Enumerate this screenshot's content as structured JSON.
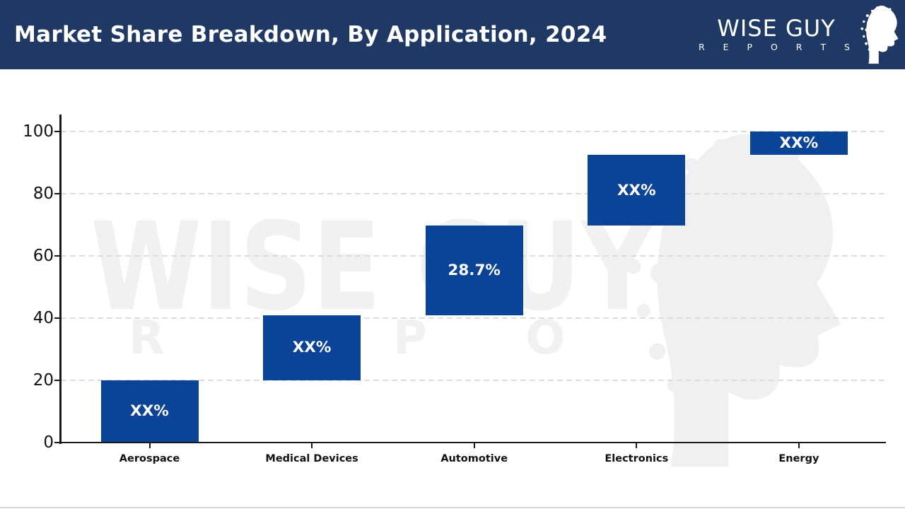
{
  "header": {
    "title": "Market Share Breakdown, By Application, 2024",
    "background_color": "#1f3864",
    "logo": {
      "wordmark": "WISE GUY",
      "subtitle": "R E P O R T S",
      "face_icon": "dotted-head-profile"
    }
  },
  "watermark": {
    "wordmark": "WISE GUY",
    "subtitle": "R E P O R T S"
  },
  "chart_data": {
    "type": "bar",
    "subtype": "waterfall-stacked-percentage",
    "title": "Market Share Breakdown, By Application, 2024",
    "categories": [
      "Aerospace",
      "Medical Devices",
      "Automotive",
      "Electronics",
      "Energy"
    ],
    "segments": [
      {
        "category": "Aerospace",
        "start": 0,
        "end": 20,
        "label": "XX%"
      },
      {
        "category": "Medical Devices",
        "start": 20,
        "end": 41,
        "label": "XX%"
      },
      {
        "category": "Automotive",
        "start": 41,
        "end": 69.7,
        "label": "28.7%"
      },
      {
        "category": "Electronics",
        "start": 69.7,
        "end": 92.4,
        "label": "XX%"
      },
      {
        "category": "Energy",
        "start": 92.4,
        "end": 100,
        "label": "XX%"
      }
    ],
    "xlabel": "",
    "ylabel": "",
    "ylim": [
      0,
      100
    ],
    "yticks": [
      0,
      20,
      40,
      60,
      80,
      100
    ],
    "grid": "horizontal-dashed",
    "legend": "none",
    "bar_color": "#0b4397",
    "bar_label_color": "#ffffff",
    "axis_color": "#1a1a1a"
  }
}
